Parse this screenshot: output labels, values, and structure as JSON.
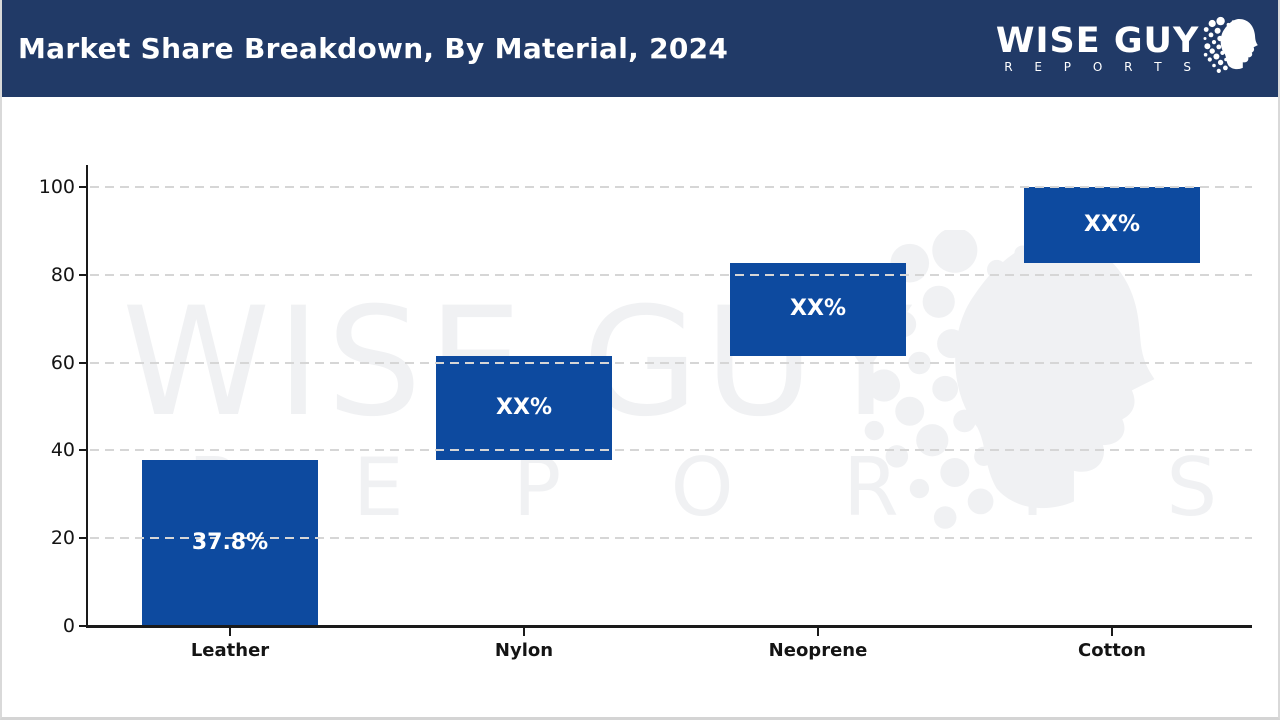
{
  "header": {
    "title": "Market Share Breakdown, By Material, 2024",
    "logo": {
      "line1": "WISE GUY",
      "line2": "R E P O R T S"
    }
  },
  "watermark": {
    "line1": "WISE GUY",
    "line2": "R E P O R T S"
  },
  "chart_data": {
    "type": "bar",
    "subtype": "waterfall-floating-bars",
    "title": "Market Share Breakdown, By Material, 2024",
    "categories": [
      "Leather",
      "Nylon",
      "Neoprene",
      "Cotton"
    ],
    "series": [
      {
        "name": "Leather",
        "start": 0,
        "end": 37.8,
        "label": "37.8%"
      },
      {
        "name": "Nylon",
        "start": 37.8,
        "end": 61.5,
        "label": "XX%"
      },
      {
        "name": "Neoprene",
        "start": 61.5,
        "end": 82.7,
        "label": "XX%"
      },
      {
        "name": "Cotton",
        "start": 82.7,
        "end": 100,
        "label": "XX%"
      }
    ],
    "xlabel": "",
    "ylabel": "",
    "ylim": [
      0,
      100
    ],
    "yticks": [
      0,
      20,
      40,
      60,
      80,
      100
    ],
    "grid": "horizontal-dashed",
    "legend": "none"
  },
  "colors": {
    "header_bg": "#213a67",
    "bar": "#0d4a9f",
    "bar_label": "#ffffff",
    "grid": "#d6d6d6",
    "axis": "#1a1a1a",
    "text": "#141414",
    "watermark": "#f0f1f3",
    "page_border": "#d9d9d9"
  }
}
